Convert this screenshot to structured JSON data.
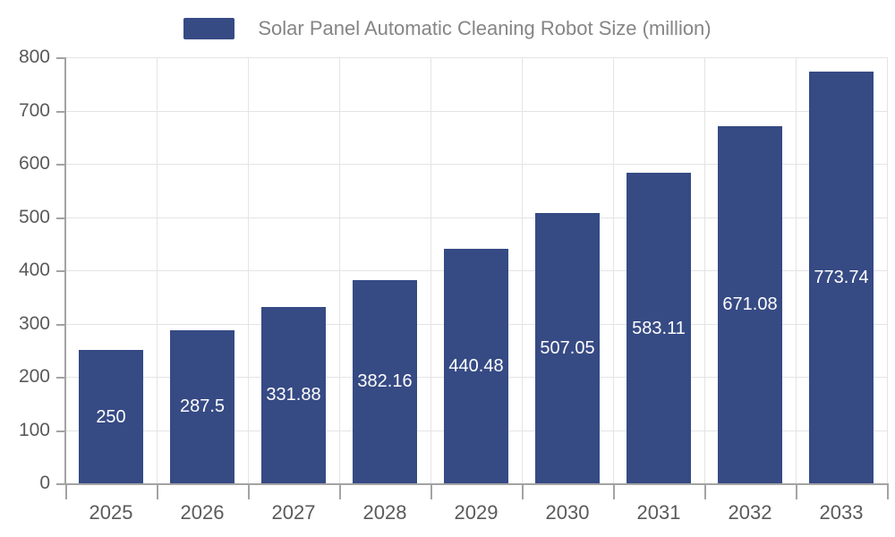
{
  "chart_data": {
    "type": "bar",
    "title": "",
    "legend": {
      "label": "Solar Panel Automatic Cleaning Robot Size (million)"
    },
    "categories": [
      "2025",
      "2026",
      "2027",
      "2028",
      "2029",
      "2030",
      "2031",
      "2032",
      "2033"
    ],
    "values": [
      250,
      287.5,
      331.88,
      382.16,
      440.48,
      507.05,
      583.11,
      671.08,
      773.74
    ],
    "value_labels": [
      "250",
      "287.5",
      "331.88",
      "382.16",
      "440.48",
      "507.05",
      "583.11",
      "671.08",
      "773.74"
    ],
    "xlabel": "",
    "ylabel": "",
    "ylim": [
      0,
      800
    ],
    "yticks": [
      0,
      100,
      200,
      300,
      400,
      500,
      600,
      700,
      800
    ],
    "grid": true,
    "legend_position": "top-center",
    "value_label_position": "inside-center",
    "colors": {
      "bar": "#364a84",
      "value_label": "#ffffff",
      "grid": "#e4e4e4",
      "axis": "#a3a3a3",
      "tick_label": "#5a5a5a",
      "legend_text": "#858585"
    }
  }
}
